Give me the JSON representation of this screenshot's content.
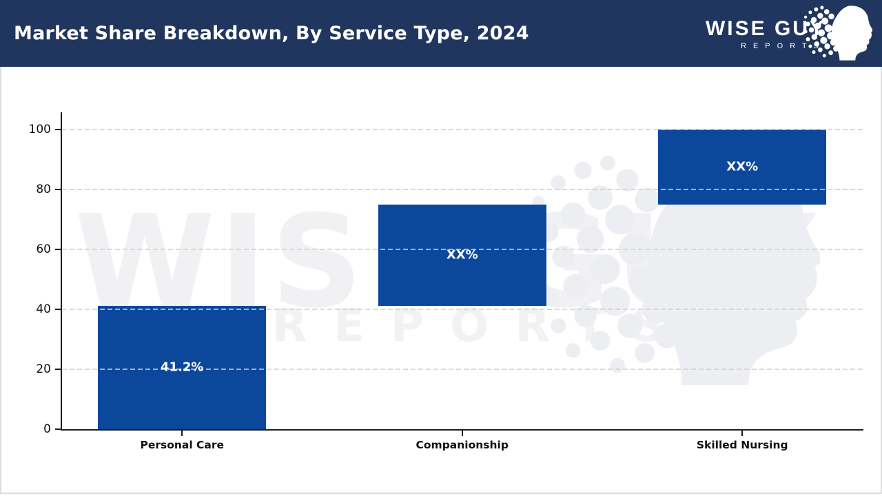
{
  "header": {
    "title": "Market Share Breakdown, By Service Type, 2024",
    "logo": {
      "line1": "WISE GUY",
      "line2": "REPORTS"
    }
  },
  "watermark": {
    "line1": "WISE GUY",
    "line2": "REPORTS"
  },
  "chart_data": {
    "type": "bar",
    "subtype": "floating-waterfall",
    "title": "Market Share Breakdown, By Service Type, 2024",
    "categories": [
      "Personal Care",
      "Companionship",
      "Skilled Nursing"
    ],
    "segments": [
      {
        "category": "Personal Care",
        "start": 0,
        "end": 41.2,
        "value_label": "41.2%"
      },
      {
        "category": "Companionship",
        "start": 41.2,
        "end": 75,
        "value_label": "XX%"
      },
      {
        "category": "Skilled Nursing",
        "start": 75,
        "end": 100,
        "value_label": "XX%"
      }
    ],
    "xlabel": "",
    "ylabel": "",
    "yticks": [
      0,
      20,
      40,
      60,
      80,
      100
    ],
    "ylim": [
      0,
      105
    ],
    "grid": {
      "horizontal": true,
      "style": "dashed",
      "over_bars": true
    },
    "legend": null,
    "bar_color": "#0b489c",
    "value_label_color": "#ffffff",
    "header_color": "#20365f"
  }
}
